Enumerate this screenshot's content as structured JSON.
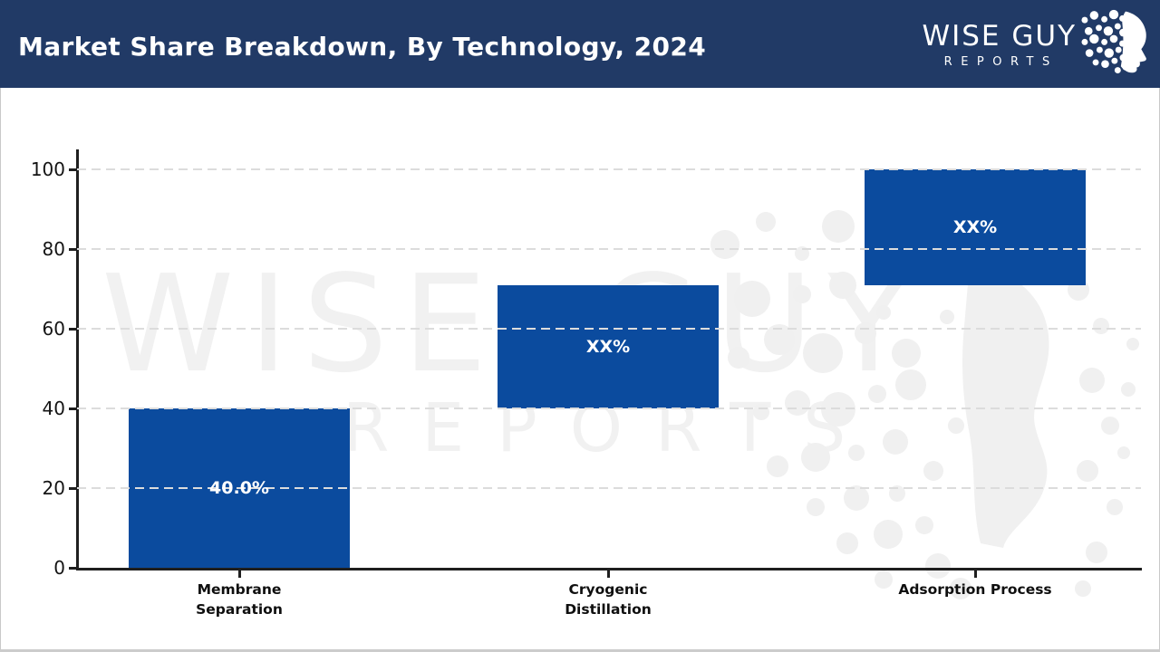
{
  "header": {
    "title": "Market Share Breakdown, By Technology, 2024",
    "bg_color": "#213a66",
    "logo": {
      "line1": "WISE GUY",
      "line2": "REPORTS"
    }
  },
  "watermark": {
    "line1": "WISE GUY",
    "line2": "REPORTS"
  },
  "colors": {
    "header_bg": "#213a66",
    "bar": "#0b4b9e",
    "bar_label": "#ffffff",
    "grid": "#dcdcdc",
    "axis": "#1f1f1f",
    "tick_text": "#141414",
    "page_border": "#c9c9c9",
    "watermark": "#f1f1f1"
  },
  "chart_data": {
    "type": "bar",
    "subtype": "waterfall-stacked",
    "title": "Market Share Breakdown, By Technology, 2024",
    "categories": [
      "Membrane Separation",
      "Cryogenic Distillation",
      "Adsorption Process"
    ],
    "categories_lines": [
      [
        "Membrane",
        "Separation"
      ],
      [
        "Cryogenic",
        "Distillation"
      ],
      [
        "Adsorption Process"
      ]
    ],
    "segments": [
      {
        "category": "Membrane Separation",
        "start": 0,
        "end": 40,
        "label": "40.0%"
      },
      {
        "category": "Cryogenic Distillation",
        "start": 40,
        "end": 71,
        "label": "XX%"
      },
      {
        "category": "Adsorption Process",
        "start": 71,
        "end": 100,
        "label": "XX%"
      }
    ],
    "ylim": [
      0,
      100
    ],
    "yticks": [
      0,
      20,
      40,
      60,
      80,
      100
    ],
    "xlabel": "",
    "ylabel": "",
    "grid": {
      "axis": "y",
      "style": "dashed",
      "drawn_over_bars": true
    },
    "legend": "none",
    "bar_color": "#0b4b9e"
  }
}
